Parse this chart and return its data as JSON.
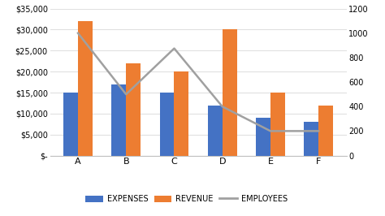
{
  "categories": [
    "A",
    "B",
    "C",
    "D",
    "E",
    "F"
  ],
  "expenses": [
    15000,
    17000,
    15000,
    12000,
    9000,
    8000
  ],
  "revenue": [
    32000,
    22000,
    20000,
    30000,
    15000,
    12000
  ],
  "employees": [
    1000,
    500,
    875,
    400,
    200,
    200
  ],
  "expenses_color": "#4472C4",
  "revenue_color": "#ED7D31",
  "employees_color": "#A0A0A0",
  "background_color": "#FFFFFF",
  "grid_color": "#E0E0E0",
  "ylim_left": [
    0,
    35000
  ],
  "ylim_right": [
    0,
    1200
  ],
  "yticks_left": [
    0,
    5000,
    10000,
    15000,
    20000,
    25000,
    30000,
    35000
  ],
  "yticks_right": [
    0,
    200,
    400,
    600,
    800,
    1000,
    1200
  ],
  "legend_labels": [
    "EXPENSES",
    "REVENUE",
    "EMPLOYEES"
  ],
  "bar_width": 0.3
}
